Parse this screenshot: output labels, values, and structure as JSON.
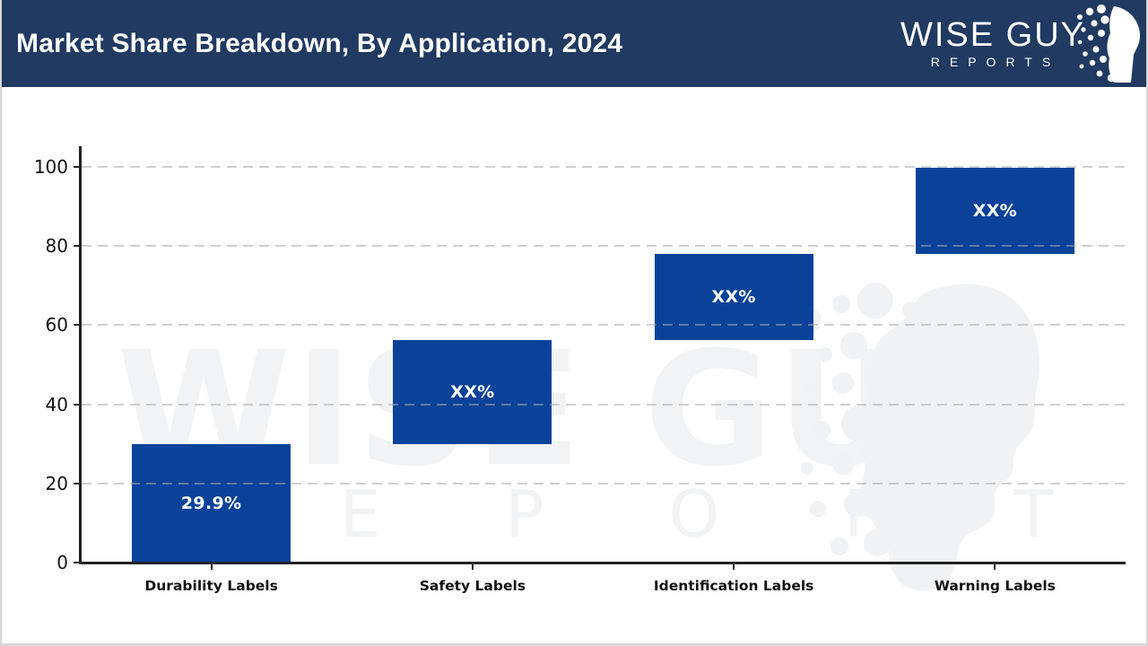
{
  "header": {
    "title": "Market Share Breakdown, By Application, 2024",
    "logo": {
      "line1": "WISE GUY",
      "line2": "REPORTS"
    }
  },
  "watermark": {
    "line1": "WISE GUY",
    "line2": "R E P O R T S"
  },
  "colors": {
    "header_bg": "#203a61",
    "bar": "#0a429a",
    "axis": "#222222",
    "grid": "#c8c8c8",
    "bar_label": "#ffffff",
    "watermark": "#f2f3f5",
    "frame_border": "#d8d8d8"
  },
  "chart_data": {
    "type": "bar",
    "variant": "waterfall",
    "title": "Market Share Breakdown, By Application, 2024",
    "xlabel": "",
    "ylabel": "",
    "categories": [
      "Durability Labels",
      "Safety Labels",
      "Identification Labels",
      "Warning Labels"
    ],
    "segments": [
      {
        "category": "Durability Labels",
        "start": 0,
        "end": 29.9,
        "label": "29.9%"
      },
      {
        "category": "Safety Labels",
        "start": 29.9,
        "end": 56.2,
        "label": "XX%"
      },
      {
        "category": "Identification Labels",
        "start": 56.2,
        "end": 78.1,
        "label": "XX%"
      },
      {
        "category": "Warning Labels",
        "start": 78.1,
        "end": 99.8,
        "label": "XX%"
      }
    ],
    "yticks": [
      0,
      20,
      40,
      60,
      80,
      100
    ],
    "ylim": [
      0,
      105
    ],
    "grid": "dashed-horizontal",
    "legend": "none"
  }
}
